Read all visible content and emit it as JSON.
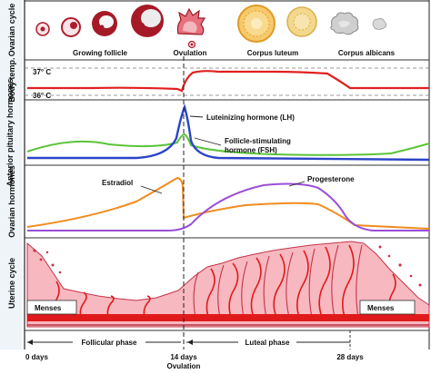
{
  "panels": {
    "ovarian_cycle": "Ovarian cycle",
    "body_temp": "Body temp.",
    "anterior_pituitary": "Anterior pituitary hormones",
    "ovarian_hormones": "Ovarian hormones",
    "uterine_cycle": "Uterine cycle"
  },
  "ovarian_stages": {
    "growing_follicle": "Growing follicle",
    "ovulation": "Ovulation",
    "corpus_luteum": "Corpus luteum",
    "corpus_albicans": "Corpus albicans"
  },
  "temperature": {
    "high": "37° C",
    "low": "36° C"
  },
  "pituitary": {
    "lh": "Luteinizing hormone (LH)",
    "fsh_line1": "Follicle-stimulating",
    "fsh_line2": "hormone (FSH)"
  },
  "ovarian_hormones": {
    "estradiol": "Estradiol",
    "progesterone": "Progesterone"
  },
  "uterine": {
    "menses_left": "Menses",
    "menses_right": "Menses"
  },
  "phases": {
    "follicular": "Follicular phase",
    "luteal": "Luteal phase"
  },
  "timeline": {
    "day0": "0 days",
    "day14": "14 days",
    "day14_sub": "Ovulation",
    "day28": "28 days"
  },
  "colors": {
    "temperature": "#e02020",
    "lh": "#2b44c8",
    "fsh": "#5bc43a",
    "estradiol": "#f08c1e",
    "progesterone": "#9b4fd8",
    "endometrium": "#f7b8c0",
    "vessel": "#e01a1a"
  }
}
